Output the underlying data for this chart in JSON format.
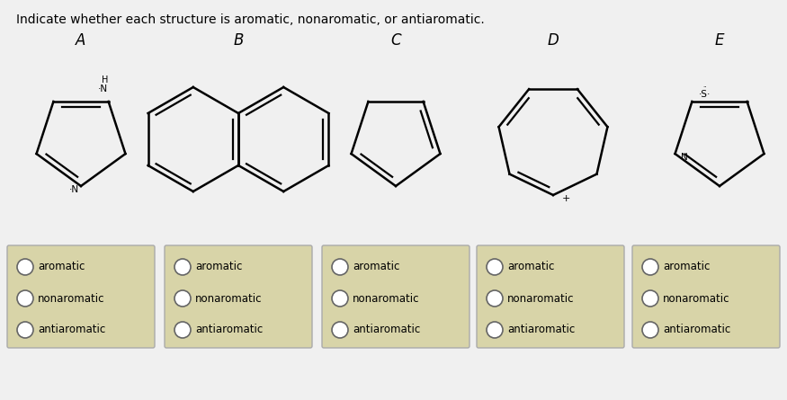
{
  "title": "Indicate whether each structure is aromatic, nonaromatic, or antiaromatic.",
  "labels": [
    "A",
    "B",
    "C",
    "D",
    "E"
  ],
  "background_color": "#f0f0f0",
  "box_color": "#d8d4a8",
  "options": [
    "aromatic",
    "nonaromatic",
    "antiaromatic"
  ],
  "title_fontsize": 10,
  "label_fontsize": 12
}
